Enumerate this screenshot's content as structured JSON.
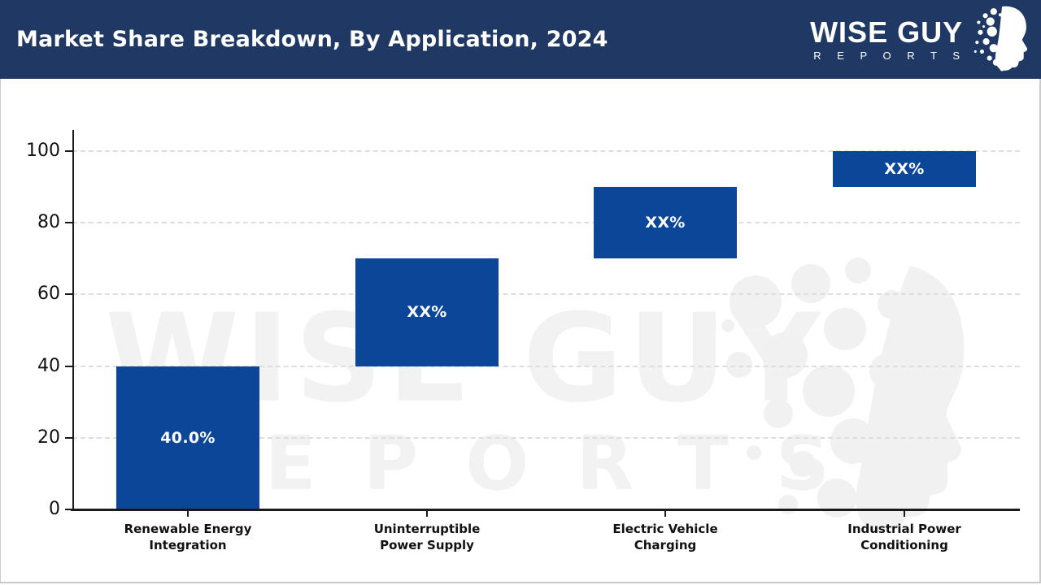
{
  "header": {
    "title": "Market Share Breakdown, By Application, 2024",
    "bg_color": "#1f3864",
    "logo": {
      "name": "WISE GUY",
      "sub": "R E P O R T S"
    }
  },
  "watermark": {
    "line1": "WISE GUY",
    "line2": "REPORTS"
  },
  "chart_data": {
    "type": "bar",
    "subtype": "waterfall",
    "title": "Market Share Breakdown, By Application, 2024",
    "categories": [
      "Renewable Energy Integration",
      "Uninterruptible Power Supply",
      "Electric Vehicle Charging",
      "Industrial Power Conditioning"
    ],
    "category_label_lines": [
      [
        "Renewable Energy",
        "Integration"
      ],
      [
        "Uninterruptible",
        "Power Supply"
      ],
      [
        "Electric Vehicle",
        "Charging"
      ],
      [
        "Industrial Power",
        "Conditioning"
      ]
    ],
    "segments": [
      {
        "start": 0,
        "end": 40,
        "value": 40,
        "label": "40.0%"
      },
      {
        "start": 40,
        "end": 70,
        "value": 30,
        "label": "XX%"
      },
      {
        "start": 70,
        "end": 90,
        "value": 20,
        "label": "XX%"
      },
      {
        "start": 90,
        "end": 100,
        "value": 10,
        "label": "XX%"
      }
    ],
    "values": [
      40,
      30,
      20,
      10
    ],
    "yticks": [
      0,
      20,
      40,
      60,
      80,
      100
    ],
    "ylim": [
      0,
      100
    ],
    "grid": "horizontal-dashed",
    "legend": "none",
    "bar_color": "#0b4699",
    "bar_label_color": "#ffffff"
  }
}
